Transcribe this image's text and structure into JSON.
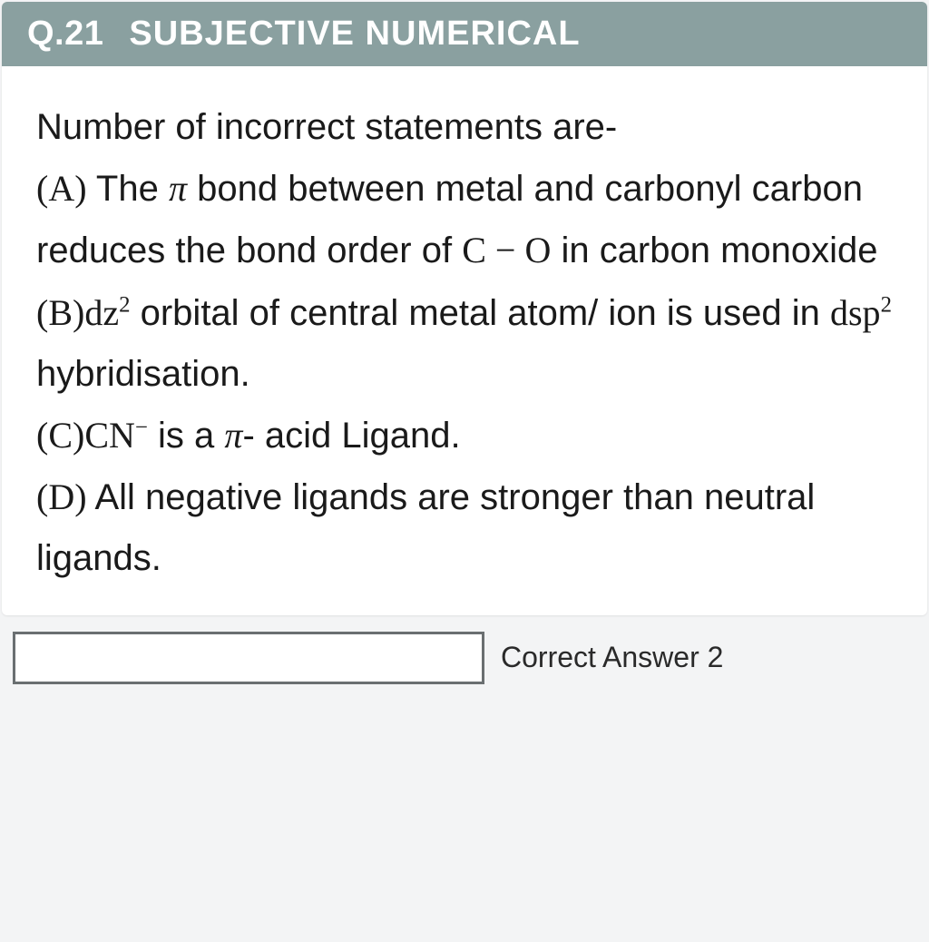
{
  "colors": {
    "header_bg": "#8aa0a0",
    "header_text": "#ffffff",
    "card_bg": "#ffffff",
    "page_bg": "#f3f4f5",
    "body_text": "#1a1a1a",
    "box_border": "#6a6f71",
    "answer_text": "#2a2a2a"
  },
  "header": {
    "qnum": "Q.21",
    "qtype": "SUBJECTIVE NUMERICAL"
  },
  "question": {
    "stem": "Number of incorrect statements are-",
    "options": {
      "A": {
        "letter": "(A)",
        "pre": " The ",
        "sym1": "π",
        "mid": " bond between metal and carbonyl carbon reduces the bond order of ",
        "sym2": "C − O",
        "post": " in carbon monoxide"
      },
      "B": {
        "letter": "(B)",
        "sym1": "dz",
        "sup1": "2",
        "mid": " orbital of central metal atom/ ion is used in ",
        "sym2": "dsp",
        "sup2": "2",
        "post": " hybridisation."
      },
      "C": {
        "letter": "(C)",
        "sym1": "CN",
        "sup1": "−",
        "mid": " is a ",
        "sym2": "π",
        "post": "- acid Ligand."
      },
      "D": {
        "letter": "(D)",
        "text": " All negative ligands are stronger than neutral ligands."
      }
    }
  },
  "answer": {
    "label": "Correct Answer 2",
    "input_value": ""
  }
}
